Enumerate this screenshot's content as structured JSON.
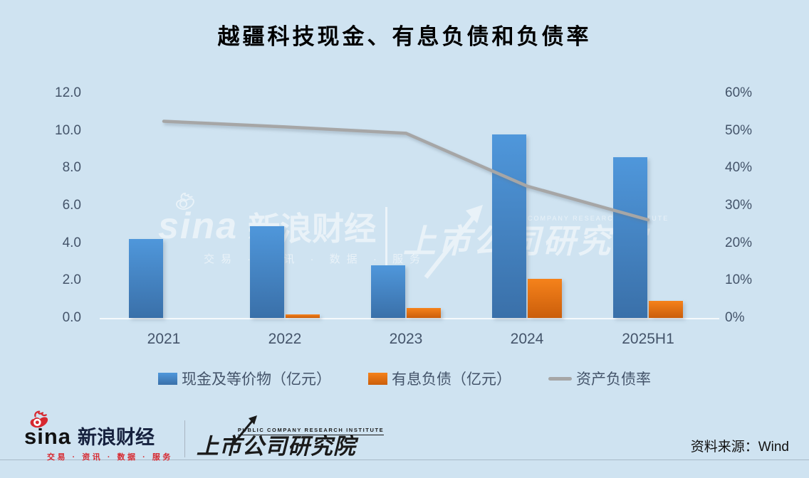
{
  "title": "越疆科技现金、有息负债和负债率",
  "chart_data": {
    "type": "bar+line combo",
    "categories": [
      "2021",
      "2022",
      "2023",
      "2024",
      "2025H1"
    ],
    "series": [
      {
        "key": "cash",
        "name": "现金及等价物（亿元）",
        "type": "bar",
        "axis": "left",
        "color_top": "#4f97db",
        "color_bottom": "#3a70a9",
        "values": [
          4.2,
          4.9,
          2.8,
          9.8,
          8.6
        ]
      },
      {
        "key": "debt",
        "name": "有息负债（亿元）",
        "type": "bar",
        "axis": "left",
        "color_top": "#f5821b",
        "color_bottom": "#cb5e0b",
        "values": [
          0,
          0.2,
          0.55,
          2.1,
          0.9
        ]
      },
      {
        "key": "ratio",
        "name": "资产负债率",
        "type": "line",
        "axis": "right",
        "color": "#a6a6a6",
        "values": [
          52.5,
          51.0,
          49.3,
          35.2,
          26.2
        ]
      }
    ],
    "left_axis": {
      "min": 0,
      "max": 12,
      "ticks": [
        "12.0",
        "10.0",
        "8.0",
        "6.0",
        "4.0",
        "2.0",
        "0.0"
      ]
    },
    "right_axis": {
      "min": 0,
      "max": 60,
      "unit": "%",
      "ticks": [
        "60%",
        "50%",
        "40%",
        "30%",
        "20%",
        "10%",
        "0%"
      ]
    },
    "grid": false,
    "legend_position": "bottom"
  },
  "watermark": {
    "brand": "sina",
    "name": "新浪财经",
    "tagline": "交易 · 资讯 · 数据 · 服务",
    "institute": "上市公司研究院",
    "institute_en": "PUBLIC COMPANY RESEARCH INSTITUTE"
  },
  "footer": {
    "sina": {
      "brand": "sina",
      "name": "新浪财经",
      "tagline": "交易 · 资讯 · 数据 · 服务"
    },
    "institute": {
      "en": "PUBLIC COMPANY RESEARCH INSTITUTE",
      "name": "上市公司研究院"
    },
    "source": "资料来源：Wind"
  },
  "colors": {
    "background": "#cfe3f1",
    "axis_text": "#44546a",
    "bar_blue": "#3f7fc1",
    "bar_orange": "#e8750f",
    "line_gray": "#a6a6a6",
    "sina_red": "#d7282f"
  }
}
